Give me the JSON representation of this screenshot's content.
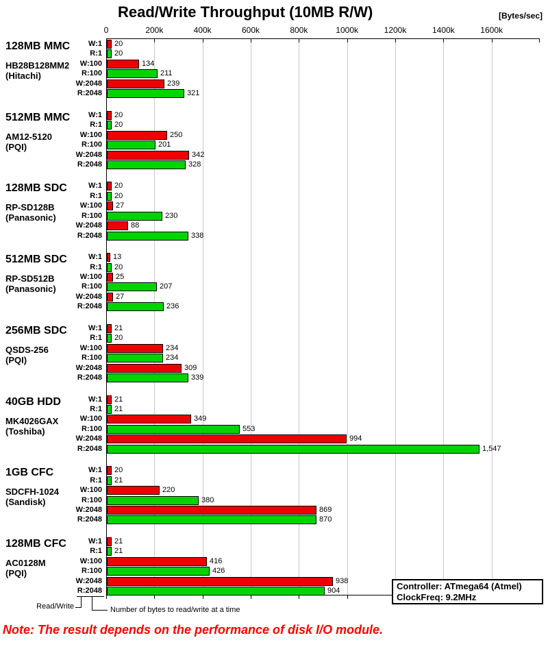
{
  "header": {
    "title": "Read/Write Throughput (10MB R/W)",
    "unit_label": "[Bytes/sec]"
  },
  "legend_box": {
    "line1": "Controller: ATmega64 (Atmel)",
    "line2": "ClockFreq: 9.2MHz"
  },
  "footnote": {
    "rw_label": "Read/Write",
    "bytes_label": "Number of bytes to read/write at a time"
  },
  "note": "Note: The result depends on the performance of disk I/O module.",
  "colors": {
    "write_bar": "#ee0000",
    "read_bar": "#00d400",
    "gridline": "#c8c8c8",
    "note_text": "#ff0000",
    "axis": "#000000"
  },
  "chart_data": {
    "type": "bar",
    "orientation": "horizontal",
    "title": "Read/Write Throughput (10MB R/W)",
    "xlabel": "[Bytes/sec]",
    "axis_tick_labels": [
      "0",
      "200k",
      "400k",
      "600k",
      "800k",
      "1000k",
      "1200k",
      "1400k",
      "1600k"
    ],
    "axis_tick_interval_k": 200,
    "axis_max_k": 1800,
    "value_axis_factor": 1000,
    "grid": true,
    "row_labels": [
      "W:1",
      "R:1",
      "W:100",
      "R:100",
      "W:2048",
      "R:2048"
    ],
    "row_kinds": [
      "write",
      "read",
      "write",
      "read",
      "write",
      "read"
    ],
    "groups": [
      {
        "name": "128MB MMC",
        "model": "HB28B128MM2",
        "vendor": "(Hitachi)",
        "values": [
          20,
          20,
          134,
          211,
          239,
          321
        ],
        "labels": [
          "20",
          "20",
          "134",
          "211",
          "239",
          "321"
        ]
      },
      {
        "name": "512MB MMC",
        "model": "AM12-5120",
        "vendor": "(PQI)",
        "values": [
          20,
          20,
          250,
          201,
          342,
          328
        ],
        "labels": [
          "20",
          "20",
          "250",
          "201",
          "342",
          "328"
        ]
      },
      {
        "name": "128MB SDC",
        "model": "RP-SD128B",
        "vendor": "(Panasonic)",
        "values": [
          20,
          20,
          27,
          230,
          88,
          338
        ],
        "labels": [
          "20",
          "20",
          "27",
          "230",
          "88",
          "338"
        ]
      },
      {
        "name": "512MB SDC",
        "model": "RP-SD512B",
        "vendor": "(Panasonic)",
        "values": [
          13,
          20,
          25,
          207,
          27,
          236
        ],
        "labels": [
          "13",
          "20",
          "25",
          "207",
          "27",
          "236"
        ]
      },
      {
        "name": "256MB SDC",
        "model": "QSDS-256",
        "vendor": "(PQI)",
        "values": [
          21,
          20,
          234,
          234,
          309,
          339
        ],
        "labels": [
          "21",
          "20",
          "234",
          "234",
          "309",
          "339"
        ]
      },
      {
        "name": "40GB HDD",
        "model": "MK4026GAX",
        "vendor": "(Toshiba)",
        "values": [
          21,
          21,
          349,
          553,
          994,
          1547
        ],
        "labels": [
          "21",
          "21",
          "349",
          "553",
          "994",
          "1,547"
        ]
      },
      {
        "name": "1GB CFC",
        "model": "SDCFH-1024",
        "vendor": "(Sandisk)",
        "values": [
          20,
          21,
          220,
          380,
          869,
          870
        ],
        "labels": [
          "20",
          "21",
          "220",
          "380",
          "869",
          "870"
        ]
      },
      {
        "name": "128MB CFC",
        "model": "AC0128M",
        "vendor": "(PQI)",
        "values": [
          21,
          21,
          416,
          426,
          938,
          904
        ],
        "labels": [
          "21",
          "21",
          "416",
          "426",
          "938",
          "904"
        ]
      }
    ]
  }
}
